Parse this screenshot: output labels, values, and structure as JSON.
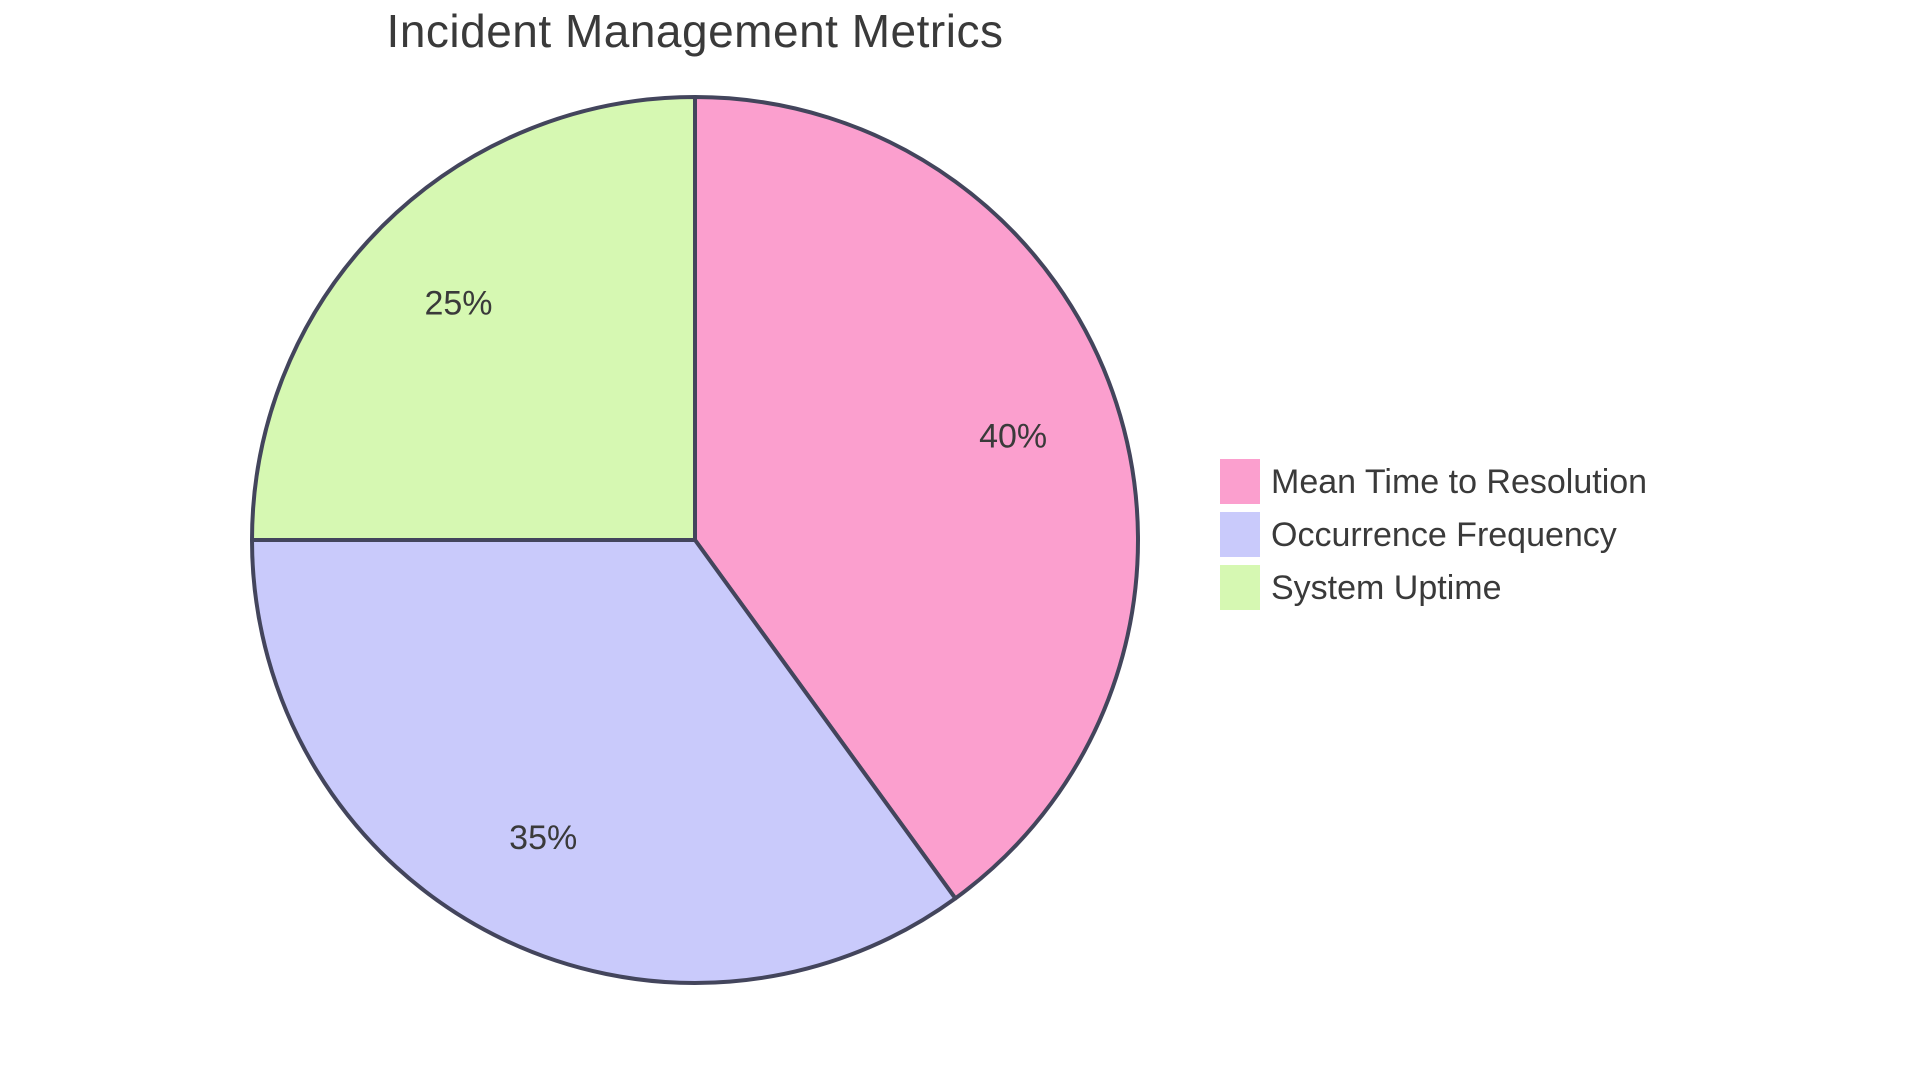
{
  "chart_data": {
    "type": "pie",
    "title": "Incident Management Metrics",
    "labels": [
      "Mean Time to Resolution",
      "Occurrence Frequency",
      "System Uptime"
    ],
    "values": [
      40,
      35,
      25
    ],
    "slice_labels": [
      "40%",
      "35%",
      "25%"
    ],
    "colors": [
      "#FB9FCE",
      "#C9CAFB",
      "#D6F8B2"
    ],
    "stroke_color": "#43455C",
    "stroke_width": 4,
    "text_color": "#3A3A3A",
    "background": "#FFFFFF",
    "legend_position": "center-right",
    "start_angle_deg": 0,
    "direction": "clockwise",
    "labels_inside": true
  }
}
